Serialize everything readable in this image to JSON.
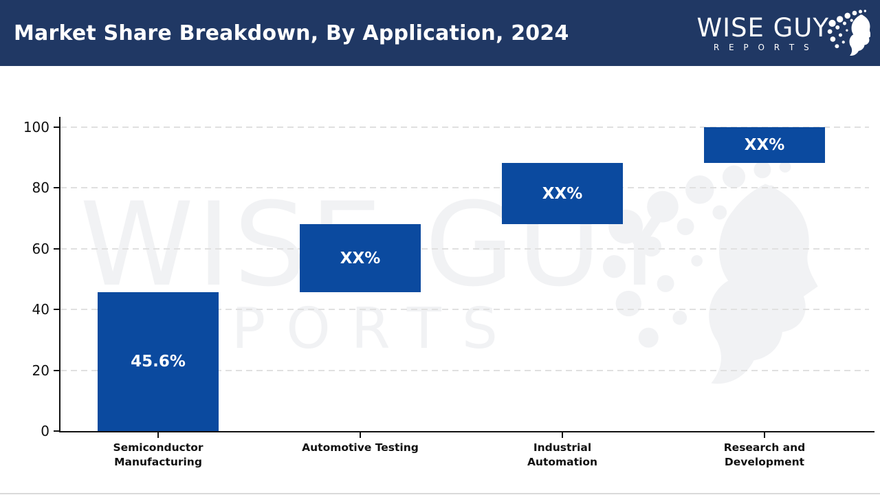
{
  "header": {
    "title": "Market Share Breakdown, By Application, 2024",
    "brand": {
      "name": "WISE GUY",
      "subtitle": "R E P O R T S"
    }
  },
  "watermark": {
    "line1": "WISE GUY",
    "line2": "REPORTS"
  },
  "chart_data": {
    "type": "bar",
    "subtype": "waterfall",
    "title": "Market Share Breakdown, By Application, 2024",
    "categories": [
      "Semiconductor\nManufacturing",
      "Automotive Testing",
      "Industrial\nAutomation",
      "Research and\nDevelopment"
    ],
    "segments": [
      {
        "category": "Semiconductor Manufacturing",
        "start": 0,
        "end": 45.6,
        "label": "45.6%"
      },
      {
        "category": "Automotive Testing",
        "start": 45.6,
        "end": 68.0,
        "label": "XX%"
      },
      {
        "category": "Industrial Automation",
        "start": 68.0,
        "end": 88.2,
        "label": "XX%"
      },
      {
        "category": "Research and Development",
        "start": 88.2,
        "end": 100.0,
        "label": "XX%"
      }
    ],
    "ylim": [
      0,
      100
    ],
    "yticks": [
      0,
      20,
      40,
      60,
      80,
      100
    ],
    "grid": "horizontal-dashed",
    "legend": "none",
    "colors": {
      "bar": "#0b4a9f",
      "bar_label": "#ffffff",
      "header_bg": "#203864",
      "grid": "#e0e0e0",
      "axis": "#111111",
      "watermark": "#f1f2f4"
    }
  }
}
